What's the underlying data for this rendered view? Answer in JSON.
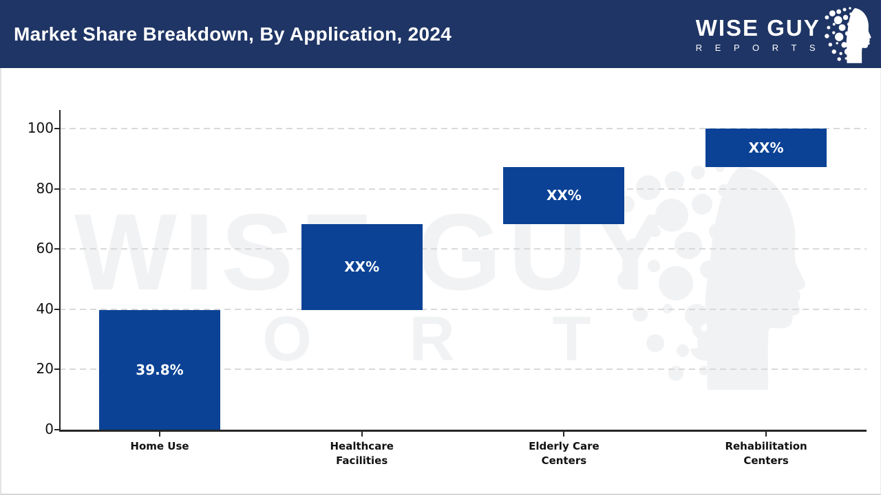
{
  "header": {
    "logo": {
      "line1": "WISE GUY",
      "line2": "R E P O R T S"
    },
    "background_color": "#1f3565"
  },
  "watermark": {
    "line1": "WISE GUY",
    "line2": "P O R T S"
  },
  "chart_data": {
    "type": "bar",
    "subtype": "waterfall",
    "title": "Market Share Breakdown, By Application, 2024",
    "xlabel": "",
    "ylabel": "",
    "ylim": [
      0,
      100
    ],
    "yticks": [
      0,
      20,
      40,
      60,
      80,
      100
    ],
    "grid": "horizontal-dashed",
    "bar_color": "#0b4295",
    "label_color": "#ffffff",
    "categories": [
      [
        "Home Use"
      ],
      [
        "Healthcare",
        "Facilities"
      ],
      [
        "Elderly Care",
        "Centers"
      ],
      [
        "Rehabilitation",
        "Centers"
      ]
    ],
    "segments": [
      {
        "category": "Home Use",
        "start": 0,
        "end": 39.8,
        "label": "39.8%"
      },
      {
        "category": "Healthcare Facilities",
        "start": 39.8,
        "end": 68.2,
        "label": "XX%"
      },
      {
        "category": "Elderly Care Centers",
        "start": 68.2,
        "end": 87.3,
        "label": "XX%"
      },
      {
        "category": "Rehabilitation Centers",
        "start": 87.3,
        "end": 100,
        "label": "XX%"
      }
    ]
  }
}
